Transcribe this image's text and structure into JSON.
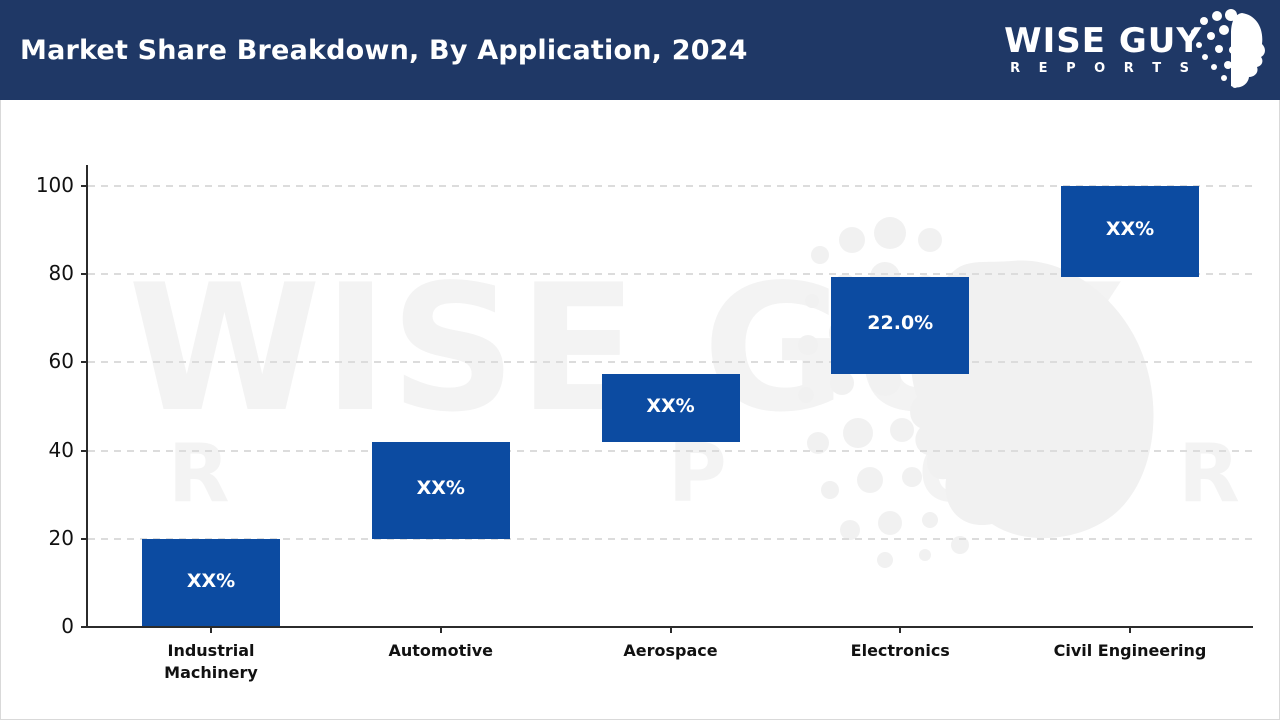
{
  "header": {
    "title": "Market Share Breakdown, By Application, 2024",
    "logo": {
      "line1": "WISE GUY",
      "line2": "R E P O R T S"
    },
    "colors": {
      "background": "#1f3866",
      "text": "#ffffff"
    }
  },
  "watermark": {
    "line1": "WISE GUY",
    "line2": "R E P O R T S"
  },
  "chart_data": {
    "type": "bar",
    "subtype": "waterfall",
    "title": "Market Share Breakdown, By Application, 2024",
    "unit": "percent market share",
    "categories": [
      "Industrial Machinery",
      "Automotive",
      "Aerospace",
      "Electronics",
      "Civil Engineering"
    ],
    "category_label_lines": [
      [
        "Industrial",
        "Machinery"
      ],
      [
        "Automotive"
      ],
      [
        "Aerospace"
      ],
      [
        "Electronics"
      ],
      [
        "Civil Engineering"
      ]
    ],
    "segments": [
      {
        "category": "Industrial Machinery",
        "start": 0,
        "end": 20,
        "label": "XX%"
      },
      {
        "category": "Automotive",
        "start": 20,
        "end": 42,
        "label": "XX%"
      },
      {
        "category": "Aerospace",
        "start": 42,
        "end": 57.5,
        "label": "XX%"
      },
      {
        "category": "Electronics",
        "start": 57.5,
        "end": 79.5,
        "label": "22.0%"
      },
      {
        "category": "Civil Engineering",
        "start": 79.5,
        "end": 100,
        "label": "XX%"
      }
    ],
    "y_ticks": [
      0,
      20,
      40,
      60,
      80,
      100
    ],
    "ylim": [
      0,
      105
    ],
    "xlabel": "",
    "ylabel": "",
    "legend": "none",
    "grid": "horizontal-dashed",
    "colors": {
      "bar": "#0c4ba1",
      "bar_label": "#ffffff",
      "grid": "#dcdcdc",
      "axis": "#2b2b2b",
      "tick_label": "#111111",
      "watermark": "#f3f3f3"
    }
  }
}
